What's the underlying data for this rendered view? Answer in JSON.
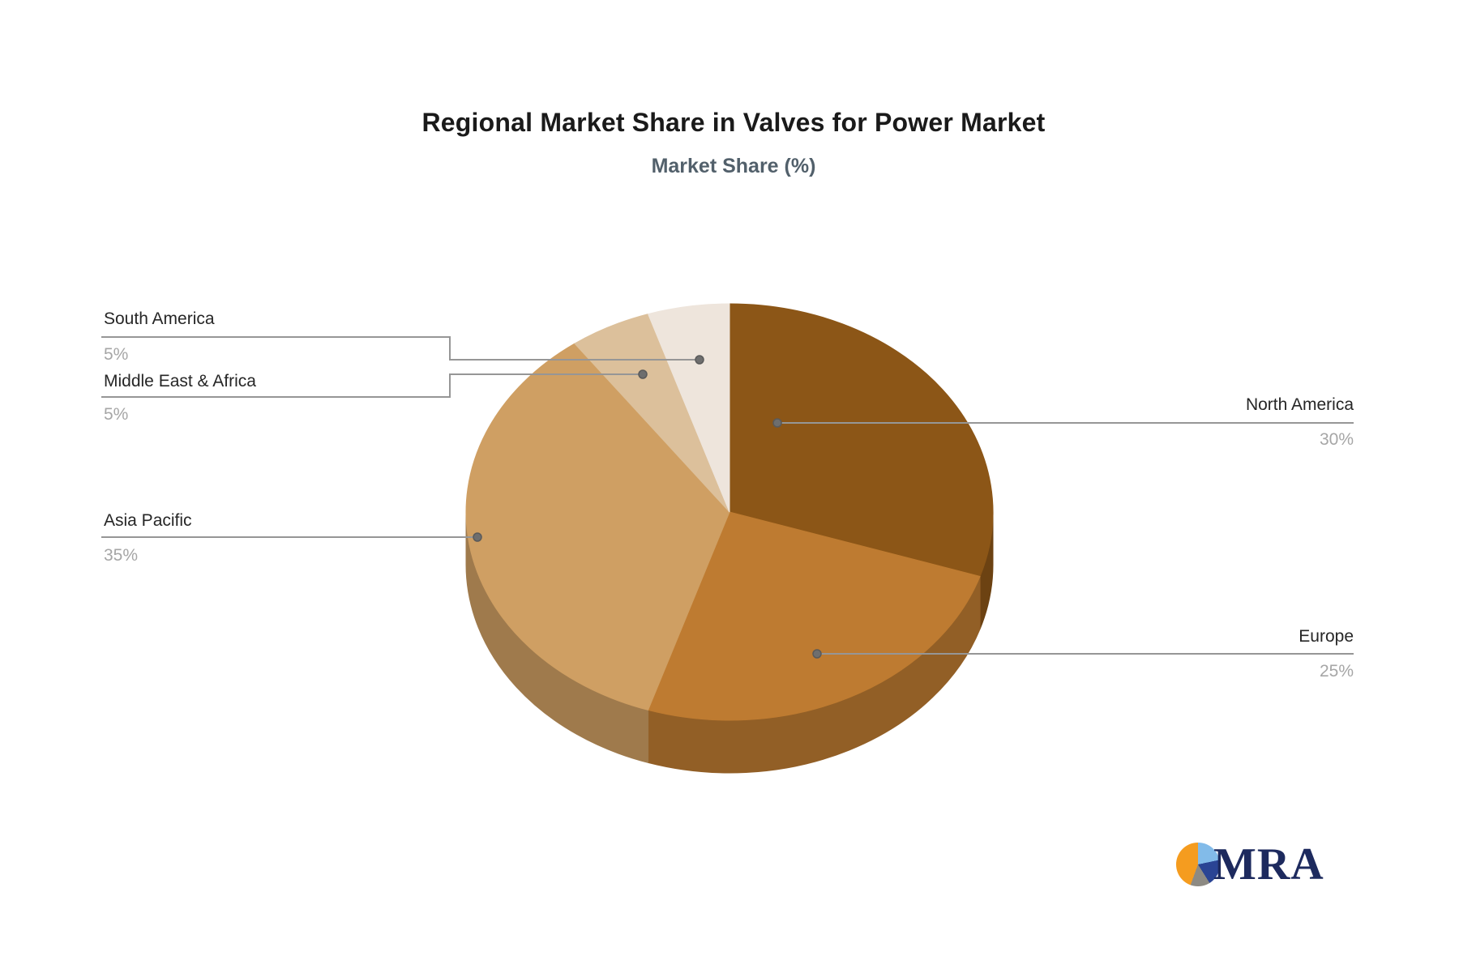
{
  "title": "Regional Market Share in Valves for Power Market",
  "subtitle": "Market Share (%)",
  "chart_data": {
    "type": "pie",
    "style": "3d",
    "title": "Regional Market Share in Valves for Power Market",
    "subtitle": "Market Share (%)",
    "unit": "percent",
    "start_angle_deg": 0,
    "direction": "clockwise",
    "legend_position": "callout-labels",
    "slices": [
      {
        "label": "North America",
        "value": 30,
        "value_label": "30%",
        "color": "#8C5617"
      },
      {
        "label": "Europe",
        "value": 25,
        "value_label": "25%",
        "color": "#BE7B31"
      },
      {
        "label": "Asia Pacific",
        "value": 35,
        "value_label": "35%",
        "color": "#CF9F63"
      },
      {
        "label": "Middle East & Africa",
        "value": 5,
        "value_label": "5%",
        "color": "#DCC09B"
      },
      {
        "label": "South America",
        "value": 5,
        "value_label": "5%",
        "color": "#EEE5DC"
      }
    ],
    "connector_color": "#969696",
    "connector_dot_color": "#6e6e6e",
    "label_color": "#262626",
    "value_color": "#a6a6a6",
    "title_color": "#1a1a1a",
    "subtitle_color": "#52606b"
  },
  "logo": {
    "text": "MRA",
    "text_color": "#1d2a5e",
    "mark_colors": {
      "orange": "#f59c1f",
      "light_blue": "#82bbe9",
      "dark_blue": "#2a4494",
      "gray": "#8d8a83"
    }
  }
}
